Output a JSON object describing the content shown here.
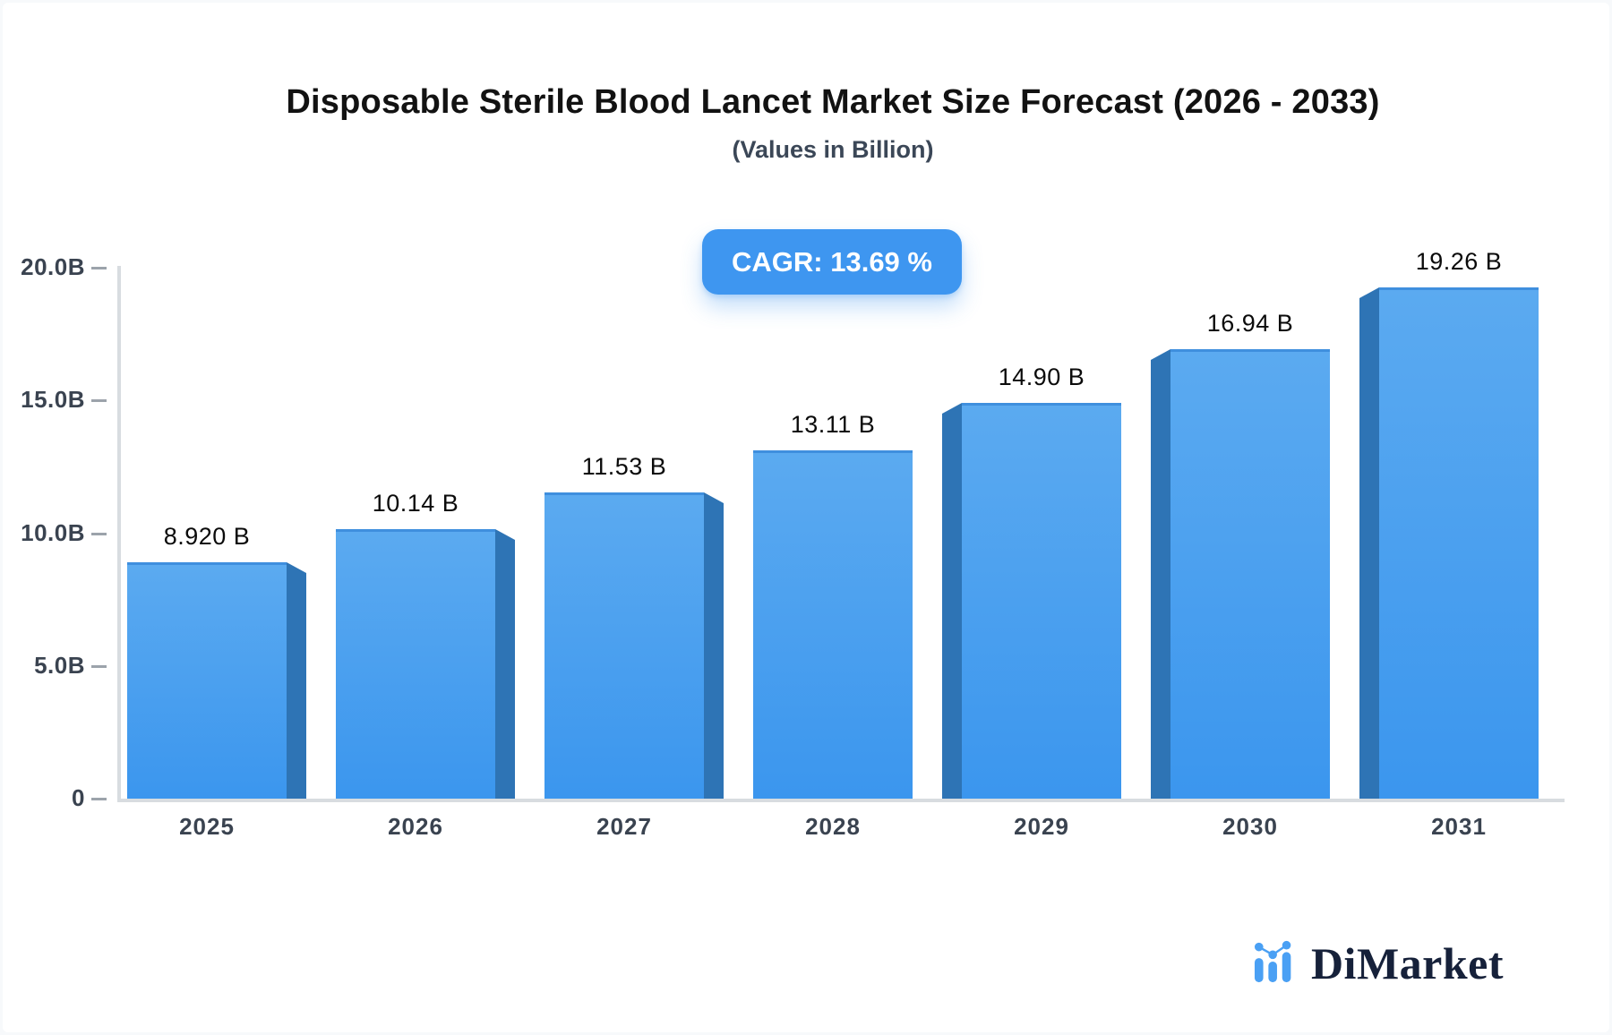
{
  "header": {
    "title": "Disposable Sterile Blood Lancet Market Size Forecast (2026 - 2033)",
    "subtitle": "(Values in Billion)",
    "cagr_badge": "CAGR: 13.69 %"
  },
  "chart_data": {
    "type": "bar",
    "title": "Disposable Sterile Blood Lancet Market Size Forecast (2026 - 2033)",
    "subtitle": "(Values in Billion)",
    "cagr_percent": 13.69,
    "categories": [
      "2025",
      "2026",
      "2027",
      "2028",
      "2029",
      "2030",
      "2031"
    ],
    "values": [
      8.92,
      10.14,
      11.53,
      13.11,
      14.9,
      16.94,
      19.26
    ],
    "value_labels": [
      "8.920 B",
      "10.14 B",
      "11.53 B",
      "13.11 B",
      "14.90 B",
      "16.94 B",
      "19.26 B"
    ],
    "xlabel": "",
    "ylabel": "",
    "ylim": [
      0,
      20
    ],
    "yticks": [
      {
        "value": 20,
        "label": "20.0B"
      },
      {
        "value": 15,
        "label": "15.0B"
      },
      {
        "value": 10,
        "label": "10.0B"
      },
      {
        "value": 5,
        "label": "5.0B"
      },
      {
        "value": 0,
        "label": "0"
      }
    ],
    "grid": false,
    "legend": false,
    "bar_style": "3d-extruded",
    "colors": {
      "bar_face_top": "#5BAAF0",
      "bar_face_bottom": "#3B96EE",
      "bar_top_edge": "#3F8FDE",
      "bar_side": "#2E74B5",
      "badge_bg": "#3E96F0",
      "badge_text": "#FFFFFF",
      "axis_line": "#D8DCE0",
      "tick_mark": "#9CA3AB",
      "axis_label": "#3A4350",
      "value_label": "#0B0B0B"
    }
  },
  "branding": {
    "logo_text": "DiMarket",
    "logo_icon": "mini-bar-chart-icon",
    "logo_icon_color": "#4AA0F4",
    "logo_text_color": "#16213A"
  }
}
